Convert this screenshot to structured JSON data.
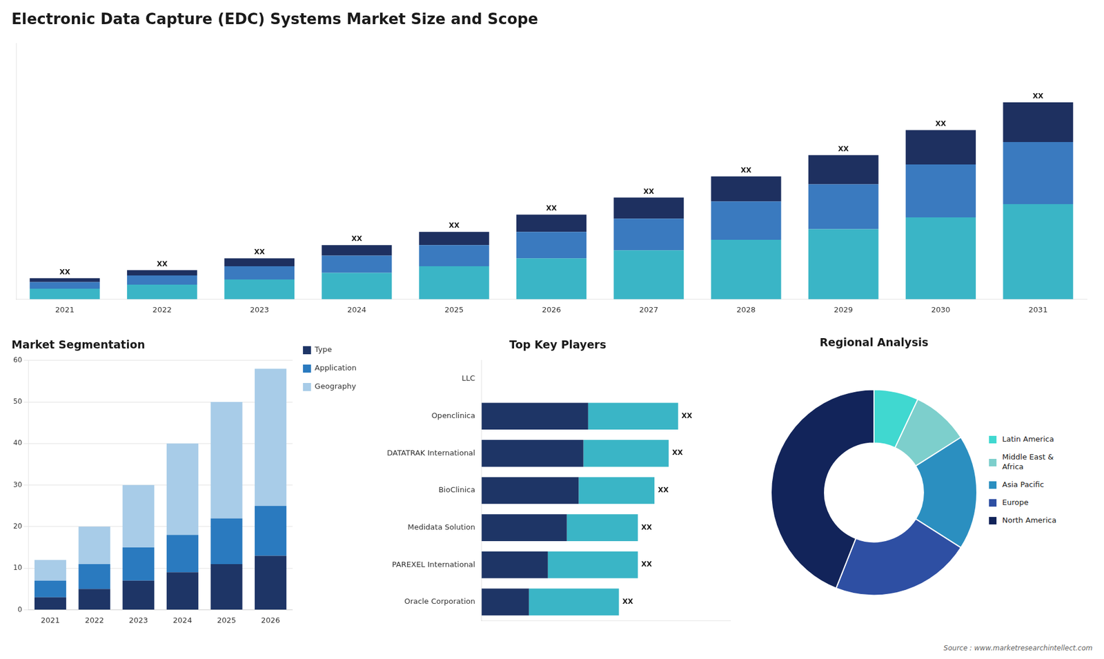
{
  "chart_data": [
    {
      "type": "bar",
      "title": "Electronic Data Capture (EDC) Systems Market Size and Scope",
      "categories": [
        "2021",
        "2022",
        "2023",
        "2024",
        "2025",
        "2026",
        "2027",
        "2028",
        "2029",
        "2030",
        "2031"
      ],
      "series": [
        {
          "color": "#3ab5c6",
          "values": [
            0.8,
            1.1,
            1.5,
            2.0,
            2.5,
            3.1,
            3.7,
            4.5,
            5.3,
            6.2,
            7.2
          ]
        },
        {
          "color": "#3a7abf",
          "values": [
            0.5,
            0.7,
            1.0,
            1.3,
            1.6,
            2.0,
            2.4,
            2.9,
            3.4,
            4.0,
            4.7
          ]
        },
        {
          "color": "#1e3060",
          "values": [
            0.3,
            0.4,
            0.6,
            0.8,
            1.0,
            1.3,
            1.6,
            1.9,
            2.2,
            2.6,
            3.0
          ],
          "value_labels": [
            "XX",
            "XX",
            "XX",
            "XX",
            "XX",
            "XX",
            "XX",
            "XX",
            "XX",
            "XX",
            "XX"
          ]
        }
      ],
      "stacked": true,
      "data_labels": true,
      "ylim": [
        0,
        19.37
      ],
      "tick_labels": "x",
      "grid": false
    },
    {
      "type": "bar",
      "title": "Market Segmentation",
      "categories": [
        "2021",
        "2022",
        "2023",
        "2024",
        "2025",
        "2026"
      ],
      "series": [
        {
          "name": "Type",
          "color": "#1e3566",
          "values": [
            3,
            5,
            7,
            9,
            11,
            13
          ]
        },
        {
          "name": "Application",
          "color": "#2a7abf",
          "values": [
            4,
            6,
            8,
            9,
            11,
            12
          ]
        },
        {
          "name": "Geography",
          "color": "#a8cce8",
          "values": [
            5,
            9,
            15,
            22,
            28,
            33
          ]
        }
      ],
      "stacked": true,
      "ylim": [
        0,
        60
      ],
      "yticks": [
        0,
        10,
        20,
        30,
        40,
        50,
        60
      ],
      "grid": true,
      "legend": "right"
    },
    {
      "type": "bar",
      "orientation": "horizontal",
      "title": "Top Key Players",
      "categories": [
        "LLC",
        "Openclinica",
        "DATATRAK International",
        "BioClinica",
        "Medidata Solution",
        "PAREXEL International",
        "Oracle Corporation"
      ],
      "series": [
        {
          "color": "#1e3566",
          "values": [
            0.0,
            0.45,
            0.43,
            0.41,
            0.36,
            0.28,
            0.2
          ]
        },
        {
          "color": "#3ab5c6",
          "values": [
            0.0,
            0.38,
            0.36,
            0.32,
            0.3,
            0.38,
            0.38
          ],
          "value_labels": [
            null,
            "XX",
            "XX",
            "XX",
            "XX",
            "XX",
            "XX"
          ]
        }
      ],
      "stacked": true,
      "data_labels": true,
      "xlim": [
        0,
        1.05
      ],
      "tick_labels": "y",
      "grid": false
    },
    {
      "type": "doughnut",
      "title": "Regional Analysis",
      "categories": [
        "Latin America",
        "Middle East &\nAfrica",
        "Asia Pacific",
        "Europe",
        "North America"
      ],
      "values": [
        7,
        9,
        18,
        22,
        44
      ],
      "colors": [
        "#40d8d0",
        "#7dcfcc",
        "#2b8fc0",
        "#2e4fa3",
        "#12245a"
      ],
      "legend": "right",
      "annotations": [
        "Source : www.marketresearchintellect.com"
      ]
    }
  ]
}
